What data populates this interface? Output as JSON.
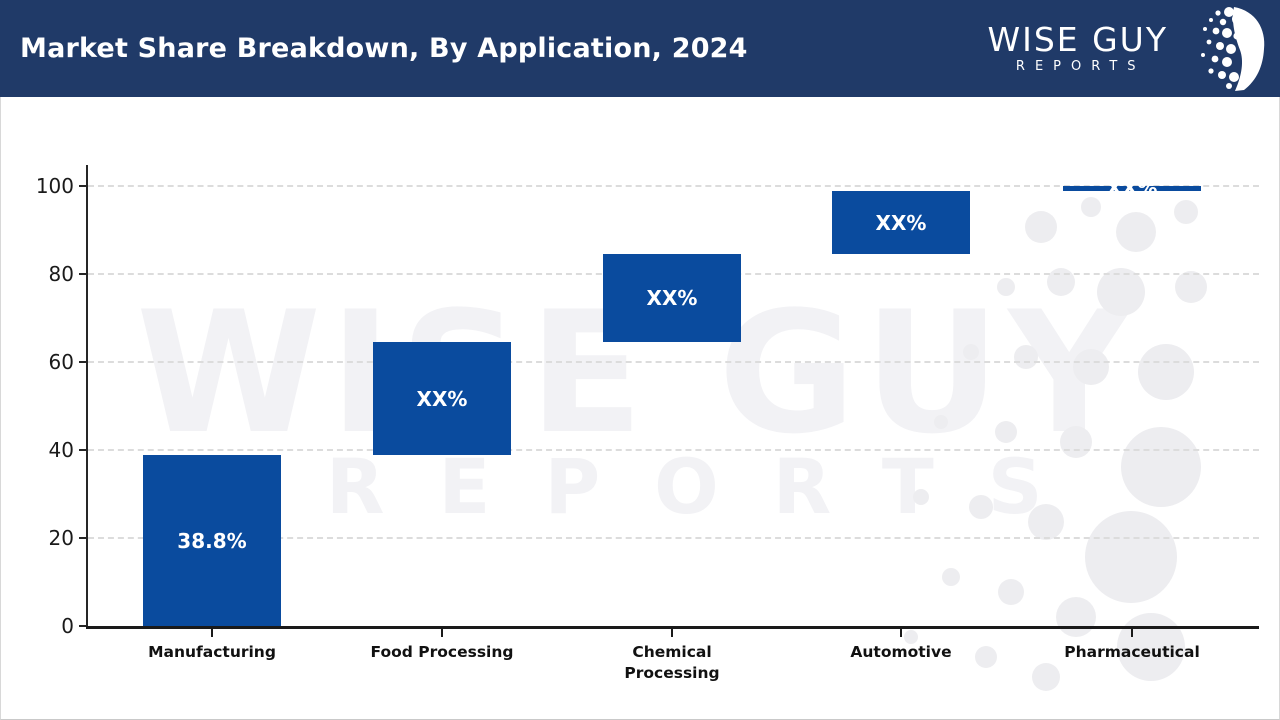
{
  "header": {
    "title": "Market Share Breakdown, By Application, 2024",
    "bg_color": "#203A68",
    "logo": {
      "wordmark": "WISE GUY",
      "subtext": "REPORTS"
    }
  },
  "watermark": {
    "line1": "WISE GUY",
    "line2": "REPORTS",
    "color": "#F2F2F5"
  },
  "chart_data": {
    "type": "bar",
    "subtype": "waterfall",
    "title": "Market Share Breakdown, By Application, 2024",
    "categories": [
      "Manufacturing",
      "Food Processing",
      "Chemical Processing",
      "Automotive",
      "Pharmaceutical"
    ],
    "category_label_lines": [
      [
        "Manufacturing"
      ],
      [
        "Food Processing"
      ],
      [
        "Chemical",
        "Processing"
      ],
      [
        "Automotive"
      ],
      [
        "Pharmaceutical"
      ]
    ],
    "series": [
      {
        "name": "Market share (%)",
        "segments": [
          {
            "category": "Manufacturing",
            "start": 0,
            "end": 38.8,
            "label": "38.8%"
          },
          {
            "category": "Food Processing",
            "start": 38.8,
            "end": 64.5,
            "label": "XX%"
          },
          {
            "category": "Chemical Processing",
            "start": 64.5,
            "end": 84.5,
            "label": "XX%"
          },
          {
            "category": "Automotive",
            "start": 84.5,
            "end": 98.9,
            "label": "XX%"
          },
          {
            "category": "Pharmaceutical",
            "start": 98.9,
            "end": 100,
            "label": "XX%"
          }
        ]
      }
    ],
    "y_ticks": [
      0,
      20,
      40,
      60,
      80,
      100
    ],
    "ylim": [
      0,
      105
    ],
    "bar_color": "#0A4B9E",
    "grid": "horizontal dashed",
    "legend": "none"
  }
}
